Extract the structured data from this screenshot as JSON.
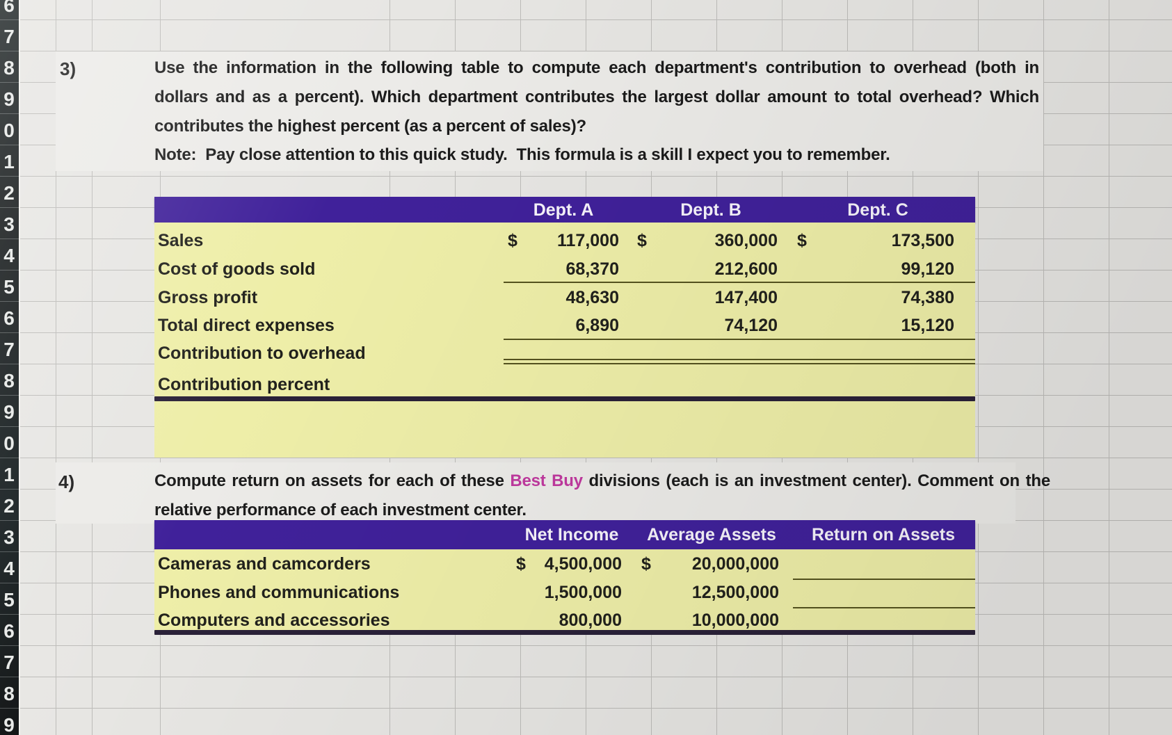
{
  "app": {
    "kind": "spreadsheet-worksheet-photo"
  },
  "colors": {
    "header_purple": "#40219a",
    "table_yellow": "#eeeea8",
    "brand_magenta": "#c0399f",
    "thick_rule": "#2a2138",
    "cell_rule_olive": "#55531f",
    "row_strip_bg": "#101617",
    "sheet_bg": "#e7e6e3"
  },
  "row_strip": {
    "digits": [
      "6",
      "7",
      "8",
      "9",
      "0",
      "1",
      "2",
      "3",
      "4",
      "5",
      "6",
      "7",
      "8",
      "9",
      "0",
      "1",
      "2",
      "3",
      "4",
      "5",
      "6",
      "7",
      "8",
      "9"
    ]
  },
  "q3": {
    "number": "3)",
    "line1": "Use the information in the following table to compute each department's contribution to overhead (both in",
    "line2": "dollars and as a percent). Which department contributes the largest dollar amount to total overhead? Which",
    "line3": "contributes the highest percent (as a percent of sales)?",
    "note": "Note:  Pay close attention to this quick study.  This formula is a skill I expect you to remember."
  },
  "q4": {
    "number": "4)",
    "line1_pre": "Compute return on assets for each of these ",
    "brand": "Best Buy",
    "line1_post": " divisions (each is an investment center). Comment on the",
    "line2": "relative performance of each investment center."
  },
  "table1": {
    "columns": [
      "Dept. A",
      "Dept. B",
      "Dept. C"
    ],
    "rows": [
      {
        "label": "Sales",
        "dollars": [
          "$",
          "$",
          "$"
        ],
        "values": [
          "117,000",
          "360,000",
          "173,500"
        ],
        "underline": "none"
      },
      {
        "label": "Cost of goods sold",
        "dollars": [
          "",
          "",
          ""
        ],
        "values": [
          "68,370",
          "212,600",
          "99,120"
        ],
        "underline": "single"
      },
      {
        "label": "Gross profit",
        "dollars": [
          "",
          "",
          ""
        ],
        "values": [
          "48,630",
          "147,400",
          "74,380"
        ],
        "underline": "none"
      },
      {
        "label": "Total direct expenses",
        "dollars": [
          "",
          "",
          ""
        ],
        "values": [
          "6,890",
          "74,120",
          "15,120"
        ],
        "underline": "single"
      },
      {
        "label": "Contribution to overhead",
        "dollars": [
          "",
          "",
          ""
        ],
        "values": [
          "",
          "",
          ""
        ],
        "underline": "double"
      },
      {
        "label": "Contribution percent",
        "dollars": [
          "",
          "",
          ""
        ],
        "values": [
          "",
          "",
          ""
        ],
        "underline": "none"
      }
    ]
  },
  "table2": {
    "columns": [
      "Net Income",
      "Average Assets",
      "Return on Assets"
    ],
    "rows": [
      {
        "label": "Cameras and camcorders",
        "ni_dollar": "$",
        "net_income": "4,500,000",
        "aa_dollar": "$",
        "avg_assets": "20,000,000",
        "roa": "",
        "roa_blank_line": true
      },
      {
        "label": "Phones and communications",
        "ni_dollar": "",
        "net_income": "1,500,000",
        "aa_dollar": "",
        "avg_assets": "12,500,000",
        "roa": "",
        "roa_blank_line": true
      },
      {
        "label": "Computers and accessories",
        "ni_dollar": "",
        "net_income": "800,000",
        "aa_dollar": "",
        "avg_assets": "10,000,000",
        "roa": "",
        "roa_blank_line": false
      }
    ]
  }
}
